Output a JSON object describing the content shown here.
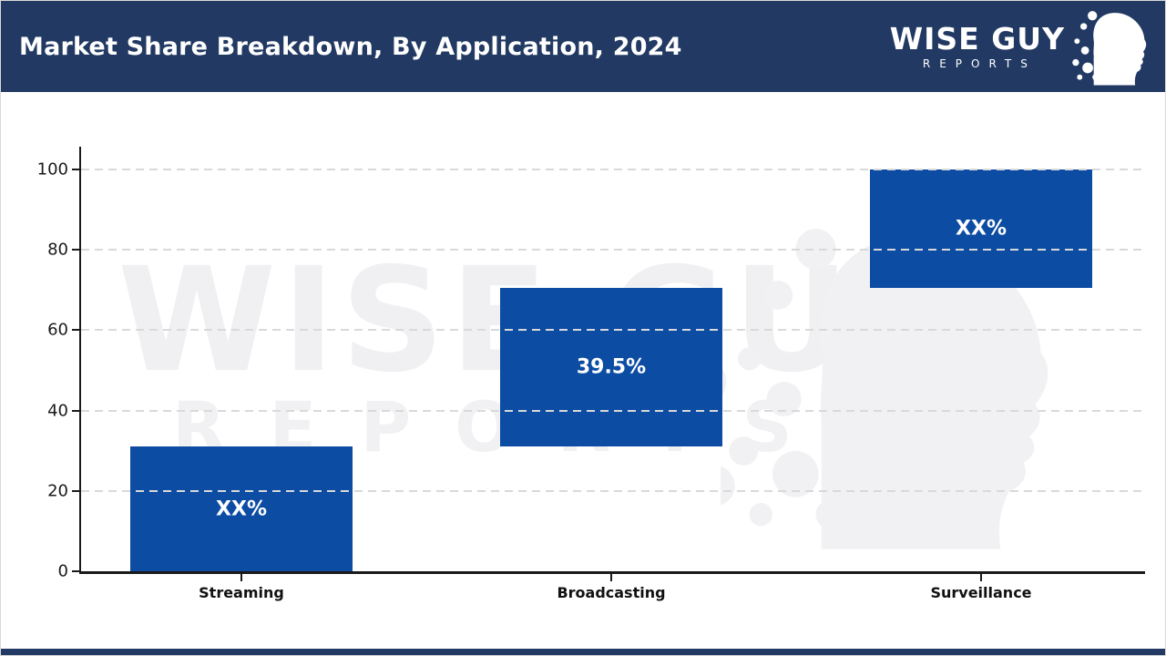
{
  "header": {
    "title": "Market Share Breakdown, By Application, 2024",
    "logo": {
      "line1": "WISE GUY",
      "line2": "REPORTS"
    }
  },
  "watermark": {
    "line1": "WISE GUY",
    "line2": "REPORTS"
  },
  "colors": {
    "header_navy": "#223A63",
    "bar_blue": "#0C4CA3",
    "gridline_gray": "#D9D9D9",
    "axis_dark": "#1A1A1A",
    "watermark_gray": "#F0F0F3",
    "label_white": "#FFFFFF"
  },
  "chart_data": {
    "type": "bar",
    "subtype": "waterfall",
    "title": "Market Share Breakdown, By Application, 2024",
    "categories": [
      "Streaming",
      "Broadcasting",
      "Surveillance"
    ],
    "starts": [
      0,
      31,
      70.5
    ],
    "values": [
      31,
      39.5,
      29.5
    ],
    "bar_labels": [
      "XX%",
      "39.5%",
      "XX%"
    ],
    "xlabel": "",
    "ylabel": "",
    "ylim": [
      0,
      100
    ],
    "yticks": [
      0,
      20,
      40,
      60,
      80,
      100
    ],
    "grid": "horizontal-dashed",
    "grid_above_bars": true,
    "legend": "none"
  }
}
